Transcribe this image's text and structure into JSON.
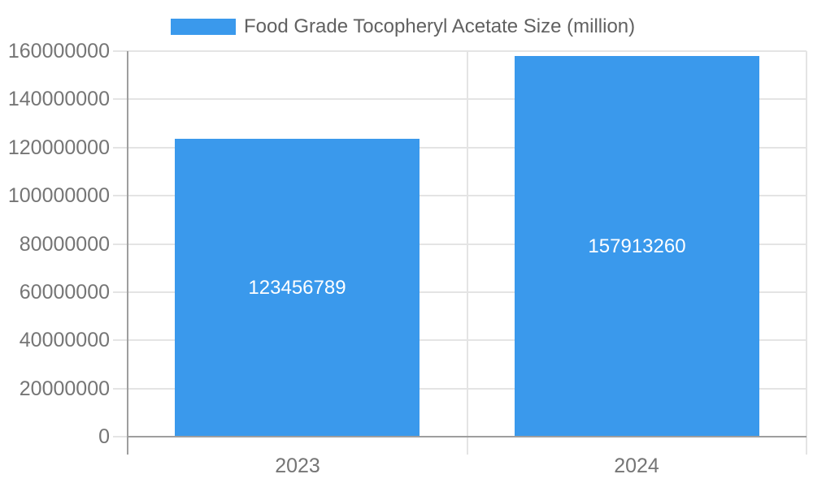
{
  "chart_data": {
    "type": "bar",
    "title": "",
    "legend": "Food Grade Tocopheryl Acetate Size (million)",
    "legend_position": "top",
    "categories": [
      "2023",
      "2024"
    ],
    "values": [
      123456789,
      157913260
    ],
    "value_labels": [
      "123456789",
      "157913260"
    ],
    "xlabel": "",
    "ylabel": "",
    "ylim": [
      0,
      160000000
    ],
    "ytick_step": 20000000,
    "yticks": [
      0,
      20000000,
      40000000,
      60000000,
      80000000,
      100000000,
      120000000,
      140000000,
      160000000
    ],
    "ytick_labels": [
      "0",
      "20000000",
      "40000000",
      "60000000",
      "80000000",
      "100000000",
      "120000000",
      "140000000",
      "160000000"
    ],
    "grid": true
  },
  "style": {
    "background": "#ffffff",
    "bar_color": "#3a99ec",
    "value_label_color": "#ffffff",
    "grid_color": "#e4e4e4",
    "axis_color": "#9e9e9e",
    "tick_label_color": "#757575",
    "legend_text_color": "#616161"
  }
}
